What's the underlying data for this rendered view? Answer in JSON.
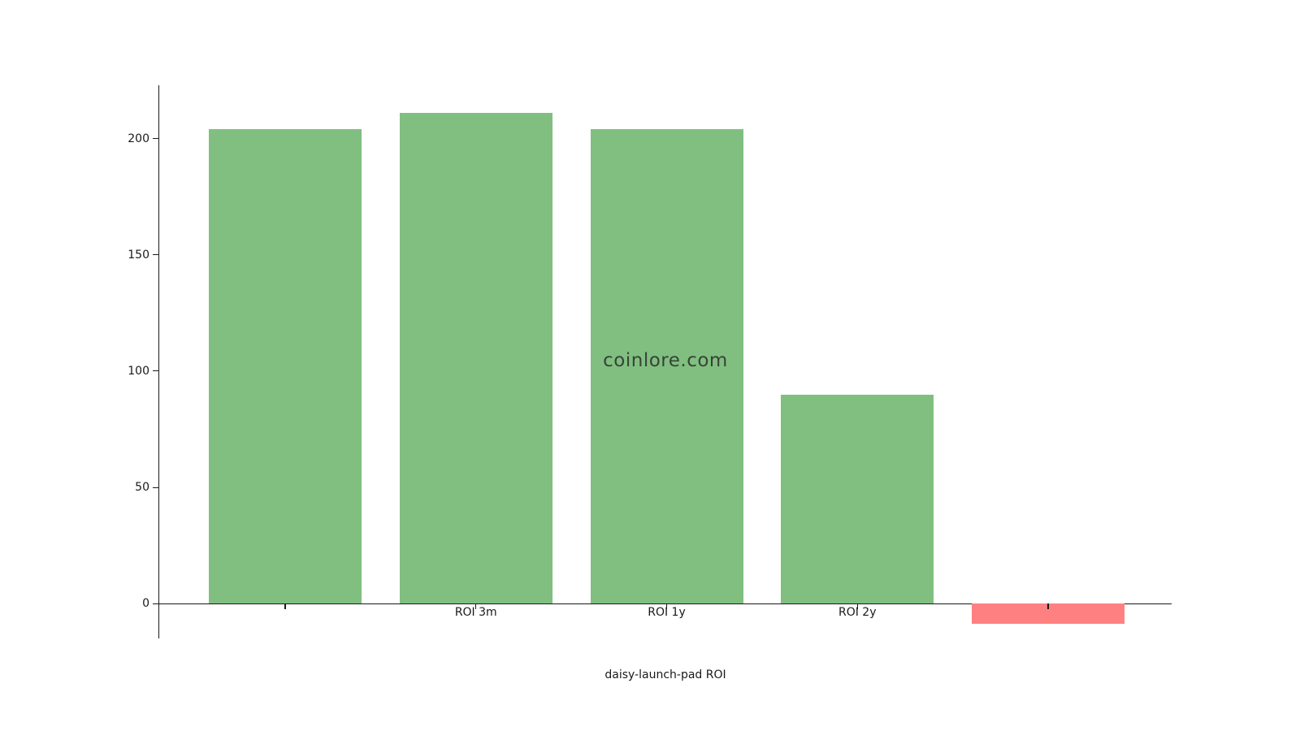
{
  "chart_data": {
    "type": "bar",
    "categories": [
      "",
      "ROI 3m",
      "ROI 1y",
      "ROI 2y",
      ""
    ],
    "values": [
      204,
      211,
      204,
      90,
      -8.5
    ],
    "series_note": "single series; green = positive ROI, red = negative ROI",
    "title": "",
    "xlabel": "daisy-launch-pad ROI",
    "ylabel": "",
    "yticks": [
      0,
      50,
      100,
      150,
      200
    ],
    "ylim": [
      -15,
      223
    ],
    "grid": false,
    "legend": null,
    "positive_color": "#80bf80",
    "negative_color": "#ff8080",
    "axis_color": "#1a1a1a"
  },
  "watermark": {
    "text": "coinlore.com",
    "color": "#282828",
    "opacity": 0.82
  }
}
